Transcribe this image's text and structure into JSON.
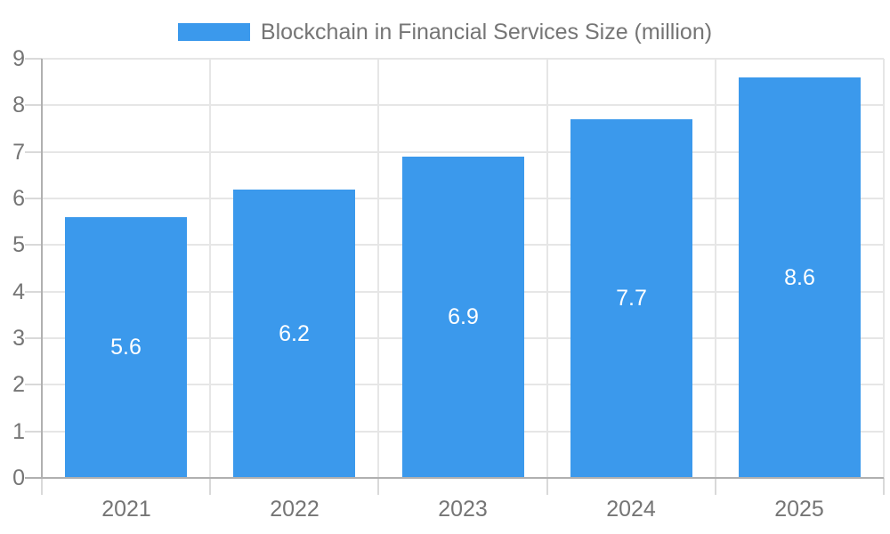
{
  "page": {
    "background": "#ffffff"
  },
  "legend": {
    "position": "top",
    "swatch_color": "#3b99ec"
  },
  "chart_data": {
    "type": "bar",
    "title": "Blockchain in Financial Services Size (million)",
    "categories": [
      "2021",
      "2022",
      "2023",
      "2024",
      "2025"
    ],
    "values": [
      5.6,
      6.2,
      6.9,
      7.7,
      8.6
    ],
    "value_labels": [
      "5.6",
      "6.2",
      "6.9",
      "7.7",
      "8.6"
    ],
    "xlabel": "",
    "ylabel": "",
    "ylim": [
      0,
      9
    ],
    "y_ticks": [
      0,
      1,
      2,
      3,
      4,
      5,
      6,
      7,
      8,
      9
    ],
    "grid": true,
    "legend_position": "top",
    "colors": {
      "bar": "#3b99ec",
      "grid": "#e6e6e6",
      "tick": "#d9d9d9",
      "axis": "#b0b0b0",
      "label": "#757575",
      "value_label": "#ffffff",
      "background": "#ffffff"
    }
  }
}
